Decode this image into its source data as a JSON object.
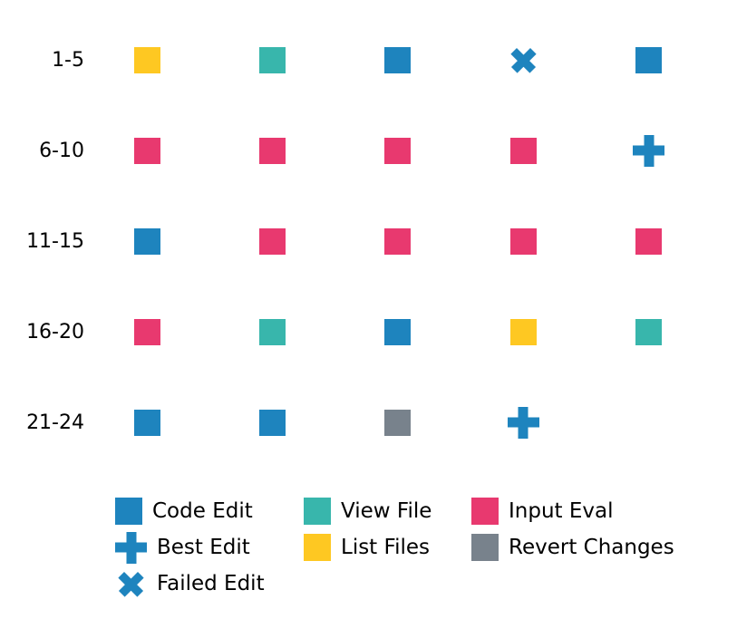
{
  "chart_data": {
    "type": "scatter",
    "description": "Categorical action-sequence grid: each row shows five consecutive step markers; marker shape/color encodes action type.",
    "title": "",
    "xlabel": "",
    "ylabel": "",
    "grid": false,
    "legend_position": "bottom",
    "rows": [
      {
        "label": "1-5",
        "markers": [
          "List Files",
          "View File",
          "Code Edit",
          "Failed Edit",
          "Code Edit"
        ]
      },
      {
        "label": "6-10",
        "markers": [
          "Input Eval",
          "Input Eval",
          "Input Eval",
          "Input Eval",
          "Best Edit"
        ]
      },
      {
        "label": "11-15",
        "markers": [
          "Code Edit",
          "Input Eval",
          "Input Eval",
          "Input Eval",
          "Input Eval"
        ]
      },
      {
        "label": "16-20",
        "markers": [
          "Input Eval",
          "View File",
          "Code Edit",
          "List Files",
          "View File"
        ]
      },
      {
        "label": "21-24",
        "markers": [
          "Code Edit",
          "Code Edit",
          "Revert Changes",
          "Best Edit"
        ]
      }
    ],
    "legend": [
      {
        "label": "Code Edit",
        "marker": "square",
        "color": "#1e84be"
      },
      {
        "label": "View File",
        "marker": "square",
        "color": "#38b6ac"
      },
      {
        "label": "Input Eval",
        "marker": "square",
        "color": "#e8396f"
      },
      {
        "label": "Best Edit",
        "marker": "plus",
        "color": "#1e84be"
      },
      {
        "label": "List Files",
        "marker": "square",
        "color": "#fec822"
      },
      {
        "label": "Revert Changes",
        "marker": "square",
        "color": "#78828c"
      },
      {
        "label": "Failed Edit",
        "marker": "x",
        "color": "#1e84be"
      }
    ],
    "colors": {
      "code_edit": "#1e84be",
      "view_file": "#38b6ac",
      "input_eval": "#e8396f",
      "list_files": "#fec822",
      "revert_changes": "#78828c",
      "background": "#ffffff",
      "text": "#000000"
    }
  }
}
